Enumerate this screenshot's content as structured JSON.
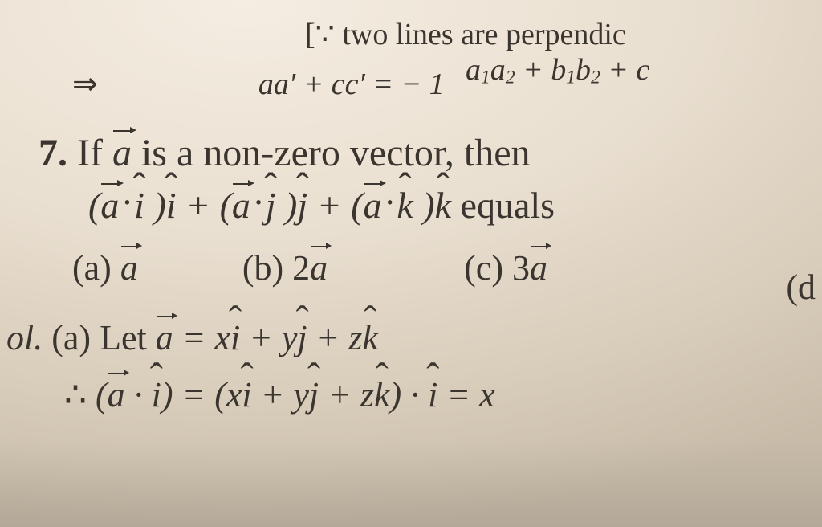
{
  "colors": {
    "text": "#3b3530",
    "bg_light": "#f5ede2",
    "bg_mid": "#e9dfd0",
    "bg_dark": "#c8bca9"
  },
  "top": {
    "line1_pre": "[∵ two lines are perpendic",
    "line2": "a₁a₂ + b₁b₂ + c",
    "implies": "⇒",
    "eq": "aa′ + cc′ = − 1"
  },
  "q7": {
    "num": "7.",
    "stem_a": "If ",
    "stem_vec": "a",
    "stem_b": " is a non-zero vector, then",
    "expr_tail": " equals",
    "options": {
      "a_label": "(a) ",
      "a_vec": "a",
      "b_label": "(b) 2",
      "b_vec": "a",
      "c_label": "(c) 3",
      "c_vec": "a",
      "d_label": "(d"
    }
  },
  "sol": {
    "prefix": "ol.",
    "a_label": "(a) Let ",
    "vec": "a",
    "eq1_rhs_x": " = x",
    "eq1_plus_y": " + y",
    "eq1_plus_z": " + z",
    "therefore": "∴",
    "open": " (",
    "dot": " · ",
    "close_eq": ") = (x",
    "mid_py": " + y",
    "mid_pz": " + z",
    "close2": ") · ",
    "eq_x": " = x"
  },
  "unit": {
    "i": "i",
    "j": "j",
    "k": "k"
  }
}
